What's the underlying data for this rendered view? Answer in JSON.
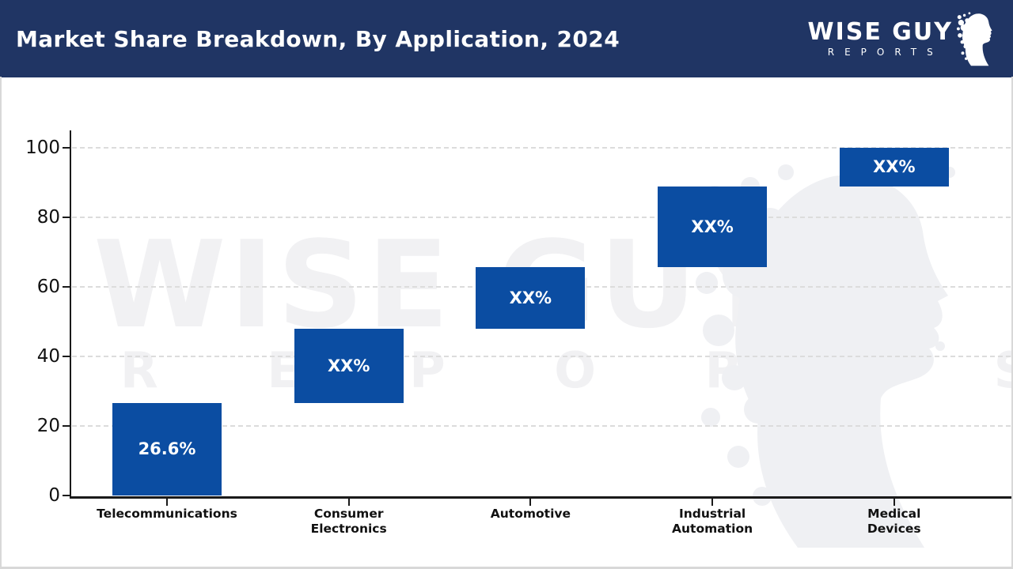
{
  "header": {
    "title": "Market Share Breakdown, By Application, 2024",
    "bg_color": "#203564",
    "logo": {
      "line1": "WISE GUY",
      "line2": "REPORTS"
    }
  },
  "watermark": {
    "line1": "WISE GUY",
    "line2": "R E P O R T S"
  },
  "chart_data": {
    "type": "bar",
    "subtype": "waterfall",
    "title": "Market Share Breakdown, By Application, 2024",
    "categories": [
      "Telecommunications",
      "Consumer Electronics",
      "Automotive",
      "Industrial Automation",
      "Medical Devices"
    ],
    "category_label_lines": [
      [
        "Telecommunications"
      ],
      [
        "Consumer",
        "Electronics"
      ],
      [
        "Automotive"
      ],
      [
        "Industrial",
        "Automation"
      ],
      [
        "Medical",
        "Devices"
      ]
    ],
    "segments": [
      {
        "category": "Telecommunications",
        "start": 0,
        "end": 26.6,
        "label": "26.6%"
      },
      {
        "category": "Consumer Electronics",
        "start": 26.6,
        "end": 48.0,
        "label": "XX%"
      },
      {
        "category": "Automotive",
        "start": 48.0,
        "end": 65.7,
        "label": "XX%"
      },
      {
        "category": "Industrial Automation",
        "start": 65.7,
        "end": 88.9,
        "label": "XX%"
      },
      {
        "category": "Medical Devices",
        "start": 88.9,
        "end": 100.0,
        "label": "XX%"
      }
    ],
    "yticks": [
      0,
      20,
      40,
      60,
      80,
      100
    ],
    "ylim": [
      0,
      105
    ],
    "grid": "horizontal-dashed",
    "legend": "none",
    "bar_color": "#0b4da2",
    "bar_label_color": "#ffffff",
    "axis_color": "#1a1a1a",
    "gridline_color": "#dcdcdc"
  }
}
